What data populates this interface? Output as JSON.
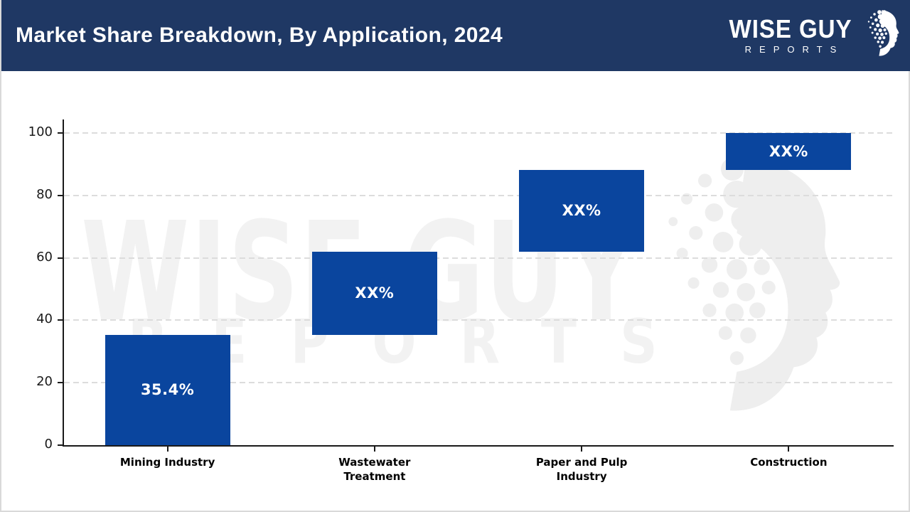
{
  "header": {
    "title": "Market Share Breakdown, By Application, 2024",
    "logo": {
      "line1": "WISE GUY",
      "line2": "REPORTS"
    }
  },
  "watermark": {
    "line1": "WISE GUY",
    "line2": "REPORTS"
  },
  "colors": {
    "header_bg": "#1f3864",
    "bar": "#0a459e",
    "grid": "#dcdcdc",
    "axis": "#1a1a1a",
    "bar_label_text": "#ffffff",
    "watermark": "#f2f2f2",
    "page_border": "#d9d9d9"
  },
  "chart_data": {
    "type": "bar",
    "subtype": "waterfall",
    "title": "Market Share Breakdown, By Application, 2024",
    "categories": [
      "Mining Industry",
      "Wastewater Treatment",
      "Paper and Pulp Industry",
      "Construction"
    ],
    "categories_display": [
      "Mining Industry",
      "Wastewater\nTreatment",
      "Paper and Pulp\nIndustry",
      "Construction"
    ],
    "segments": [
      {
        "category": "Mining Industry",
        "start": 0,
        "end": 35.4,
        "label": "35.4%"
      },
      {
        "category": "Wastewater Treatment",
        "start": 35.4,
        "end": 62.0,
        "label": "XX%"
      },
      {
        "category": "Paper and Pulp Industry",
        "start": 62.0,
        "end": 88.2,
        "label": "XX%"
      },
      {
        "category": "Construction",
        "start": 88.2,
        "end": 100.0,
        "label": "XX%"
      }
    ],
    "xlabel": "",
    "ylabel": "",
    "ylim": [
      0,
      100
    ],
    "yticks": [
      0,
      20,
      40,
      60,
      80,
      100
    ],
    "grid": "horizontal-dashed",
    "legend": "none",
    "bar_color": "#0a459e"
  }
}
